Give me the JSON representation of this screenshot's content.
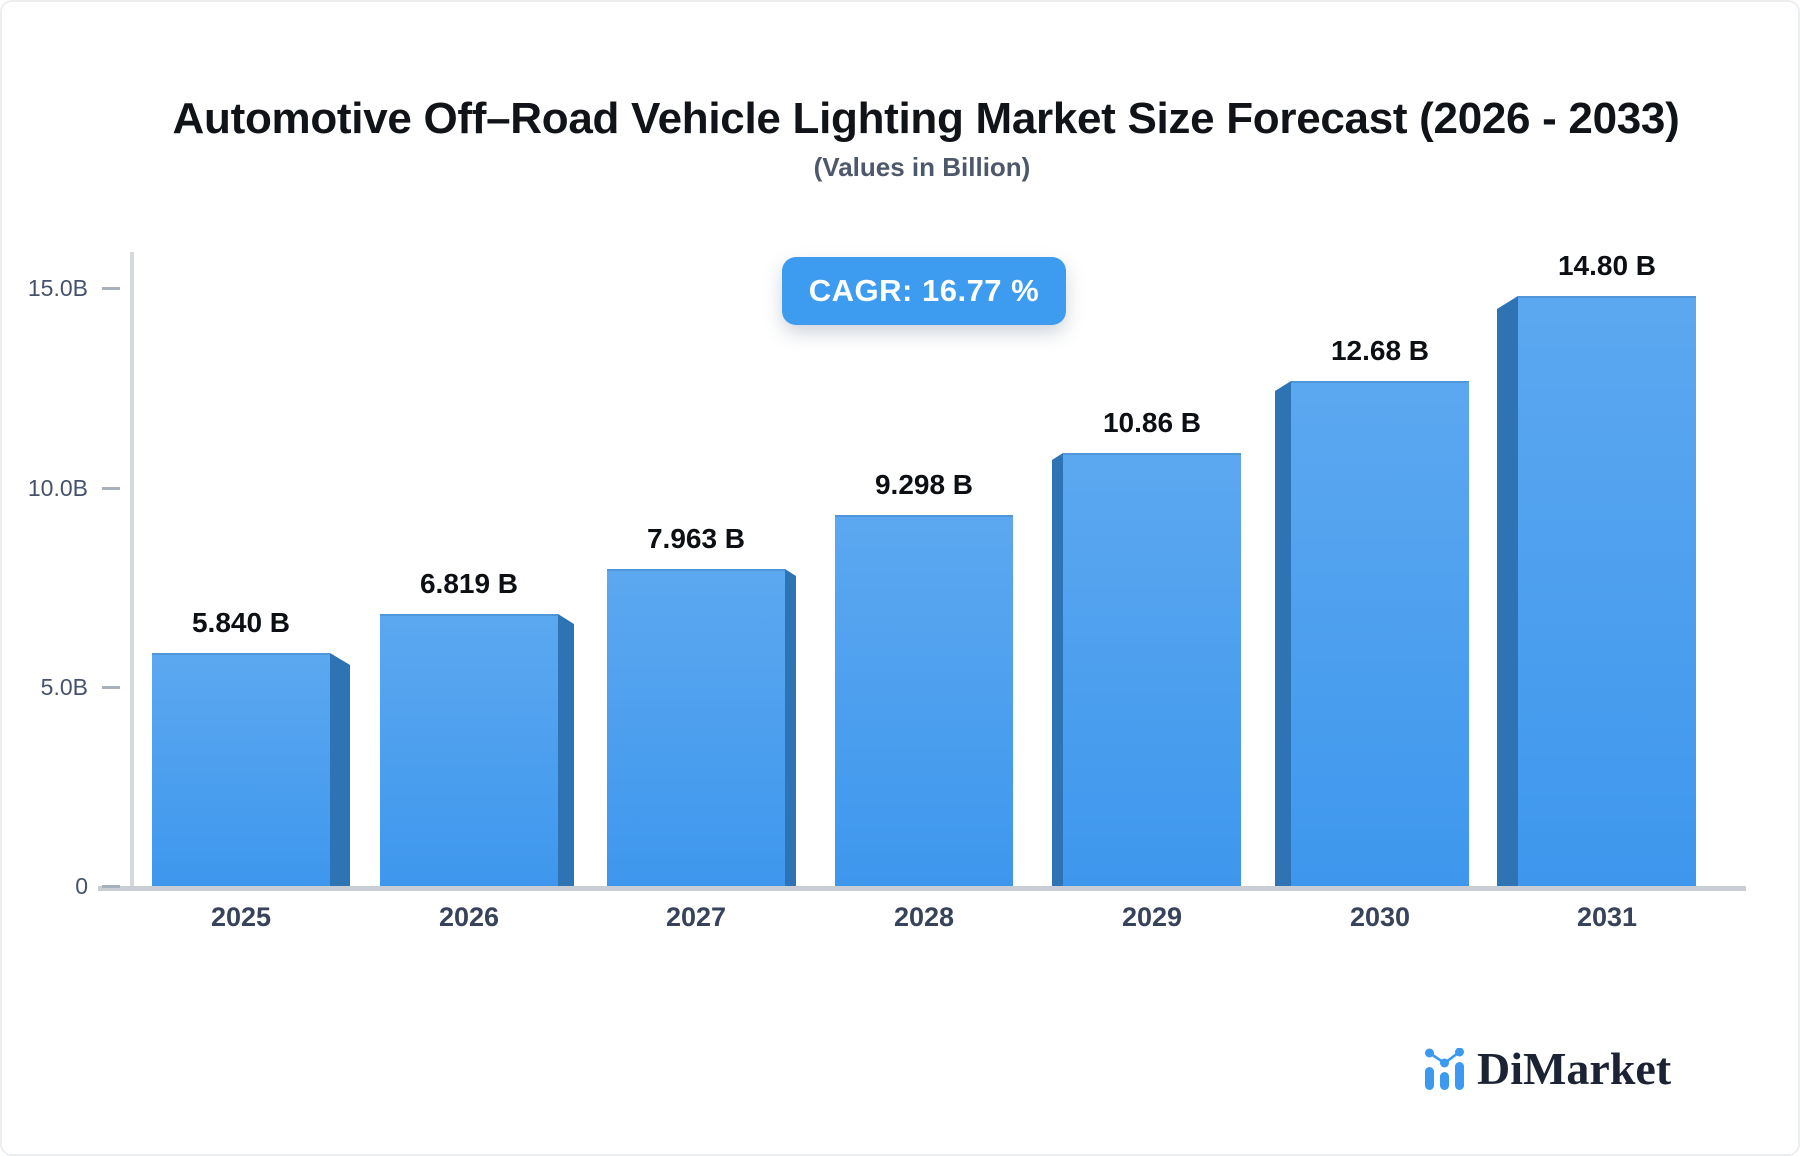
{
  "header": {
    "title": "Automotive Off–Road Vehicle Lighting Market Size Forecast (2026 - 2033)",
    "subtitle": "(Values in Billion)"
  },
  "badge": {
    "label": "CAGR: 16.77 %"
  },
  "chart_data": {
    "type": "bar",
    "title": "Automotive Off–Road Vehicle Lighting Market Size Forecast (2026 - 2033)",
    "subtitle": "(Values in Billion)",
    "cagr_percent": 16.77,
    "categories": [
      "2025",
      "2026",
      "2027",
      "2028",
      "2029",
      "2030",
      "2031"
    ],
    "values": [
      5.84,
      6.819,
      7.963,
      9.298,
      10.86,
      12.68,
      14.8
    ],
    "value_labels": [
      "5.840 B",
      "6.819 B",
      "7.963 B",
      "9.298 B",
      "10.86 B",
      "12.68 B",
      "14.80 B"
    ],
    "unit": "Billion",
    "xlabel": "",
    "ylabel": "",
    "ylim": [
      0,
      15
    ],
    "y_tick_labels": [
      "0",
      "5.0B",
      "10.0B",
      "15.0B"
    ],
    "y_tick_values": [
      0,
      5,
      10,
      15
    ],
    "grid": false,
    "legend": "none",
    "bar_style": "3d-perspective"
  },
  "colors": {
    "accent": "#3D9BF0",
    "bar_front_top": "#5CA8F0",
    "bar_front_bottom": "#3E97ED",
    "bar_side": "#2E74B4",
    "axis_line": "#D5D8DC",
    "baseline": "#C9CED4",
    "tick": "#A8B1BB",
    "tick_label": "#44536B",
    "x_label": "#36435A",
    "value_label": "#0C1014",
    "title": "#101418",
    "subtitle": "#4D586B",
    "badge_bg": "#3D9BF0",
    "badge_text": "#FFFFFF",
    "logo_blue": "#3B99F0",
    "logo_text": "#1B2334"
  },
  "logo": {
    "name": "DiMarket",
    "icon": "bar-line-chart-icon"
  }
}
